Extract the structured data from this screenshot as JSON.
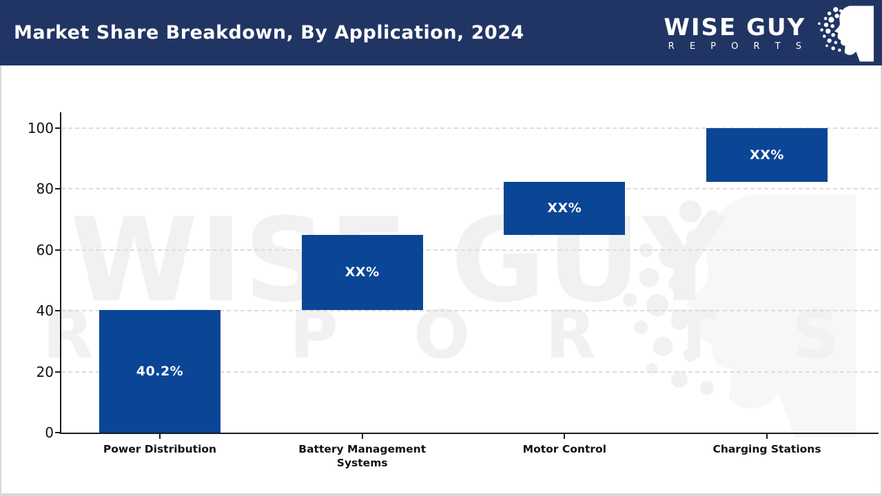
{
  "header": {
    "title": "Market Share Breakdown, By Application, 2024",
    "logo": {
      "line1": "WISE GUY",
      "line2": "R E P O R T S"
    },
    "bg_color": "#213564"
  },
  "watermark": {
    "line1": "WISE GUY",
    "line2": "R E P O R T S"
  },
  "chart_data": {
    "type": "bar",
    "subtype": "waterfall-floating-segments",
    "title": "Market Share Breakdown, By Application, 2024",
    "categories": [
      [
        "Power Distribution"
      ],
      [
        "Battery Management",
        "Systems"
      ],
      [
        "Motor Control"
      ],
      [
        "Charging Stations"
      ]
    ],
    "segments": [
      {
        "category": "Power Distribution",
        "start": 0,
        "end": 40.2,
        "label": "40.2%"
      },
      {
        "category": "Battery Management Systems",
        "start": 40.2,
        "end": 65,
        "label": "XX%"
      },
      {
        "category": "Motor Control",
        "start": 65,
        "end": 82.3,
        "label": "XX%"
      },
      {
        "category": "Charging Stations",
        "start": 82.3,
        "end": 100,
        "label": "XX%"
      }
    ],
    "yticks": [
      0,
      20,
      40,
      60,
      80,
      100
    ],
    "ylim": [
      0,
      100
    ],
    "xlabel": "",
    "ylabel": "",
    "grid": "horizontal-dashed",
    "legend": "none",
    "bar_color": "#0b4596",
    "bar_label_color": "#ffffff"
  }
}
